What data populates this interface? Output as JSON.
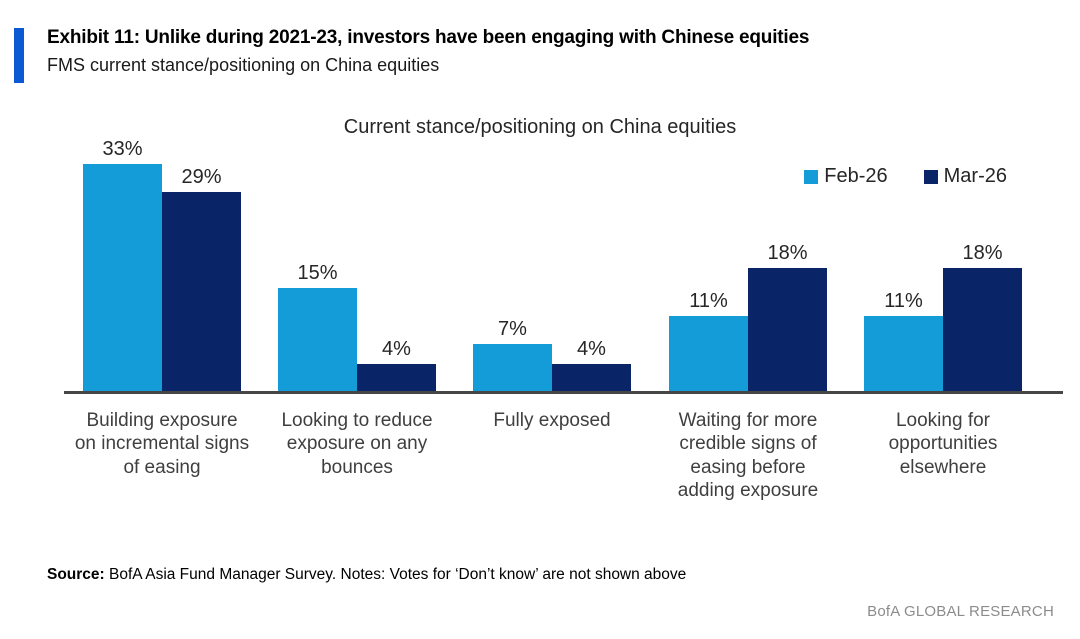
{
  "header": {
    "exhibit_title": "Exhibit 11: Unlike during 2021-23, investors have been engaging with Chinese equities",
    "subtitle": "FMS current stance/positioning on China equities",
    "accent_color": "#0b5ad4"
  },
  "chart_data": {
    "type": "bar",
    "title": "Current stance/positioning on China equities",
    "categories": [
      "Building exposure on incremental signs of easing",
      "Looking to reduce exposure on any bounces",
      "Fully exposed",
      "Waiting for more credible signs of easing before adding exposure",
      "Looking for opportunities elsewhere"
    ],
    "series": [
      {
        "name": "Feb-26",
        "color": "#149cd9",
        "values": [
          33,
          15,
          7,
          11,
          11
        ]
      },
      {
        "name": "Mar-26",
        "color": "#0a2468",
        "values": [
          29,
          4,
          4,
          18,
          18
        ]
      }
    ],
    "value_suffix": "%",
    "ylim": [
      0,
      35
    ],
    "grid": false,
    "legend_position": "top-right",
    "axis_color": "#464646"
  },
  "footer": {
    "source_label": "Source:",
    "source_text": " BofA Asia Fund Manager Survey. Notes: Votes for ‘Don’t know’ are not shown above",
    "branding": "BofA GLOBAL RESEARCH"
  }
}
